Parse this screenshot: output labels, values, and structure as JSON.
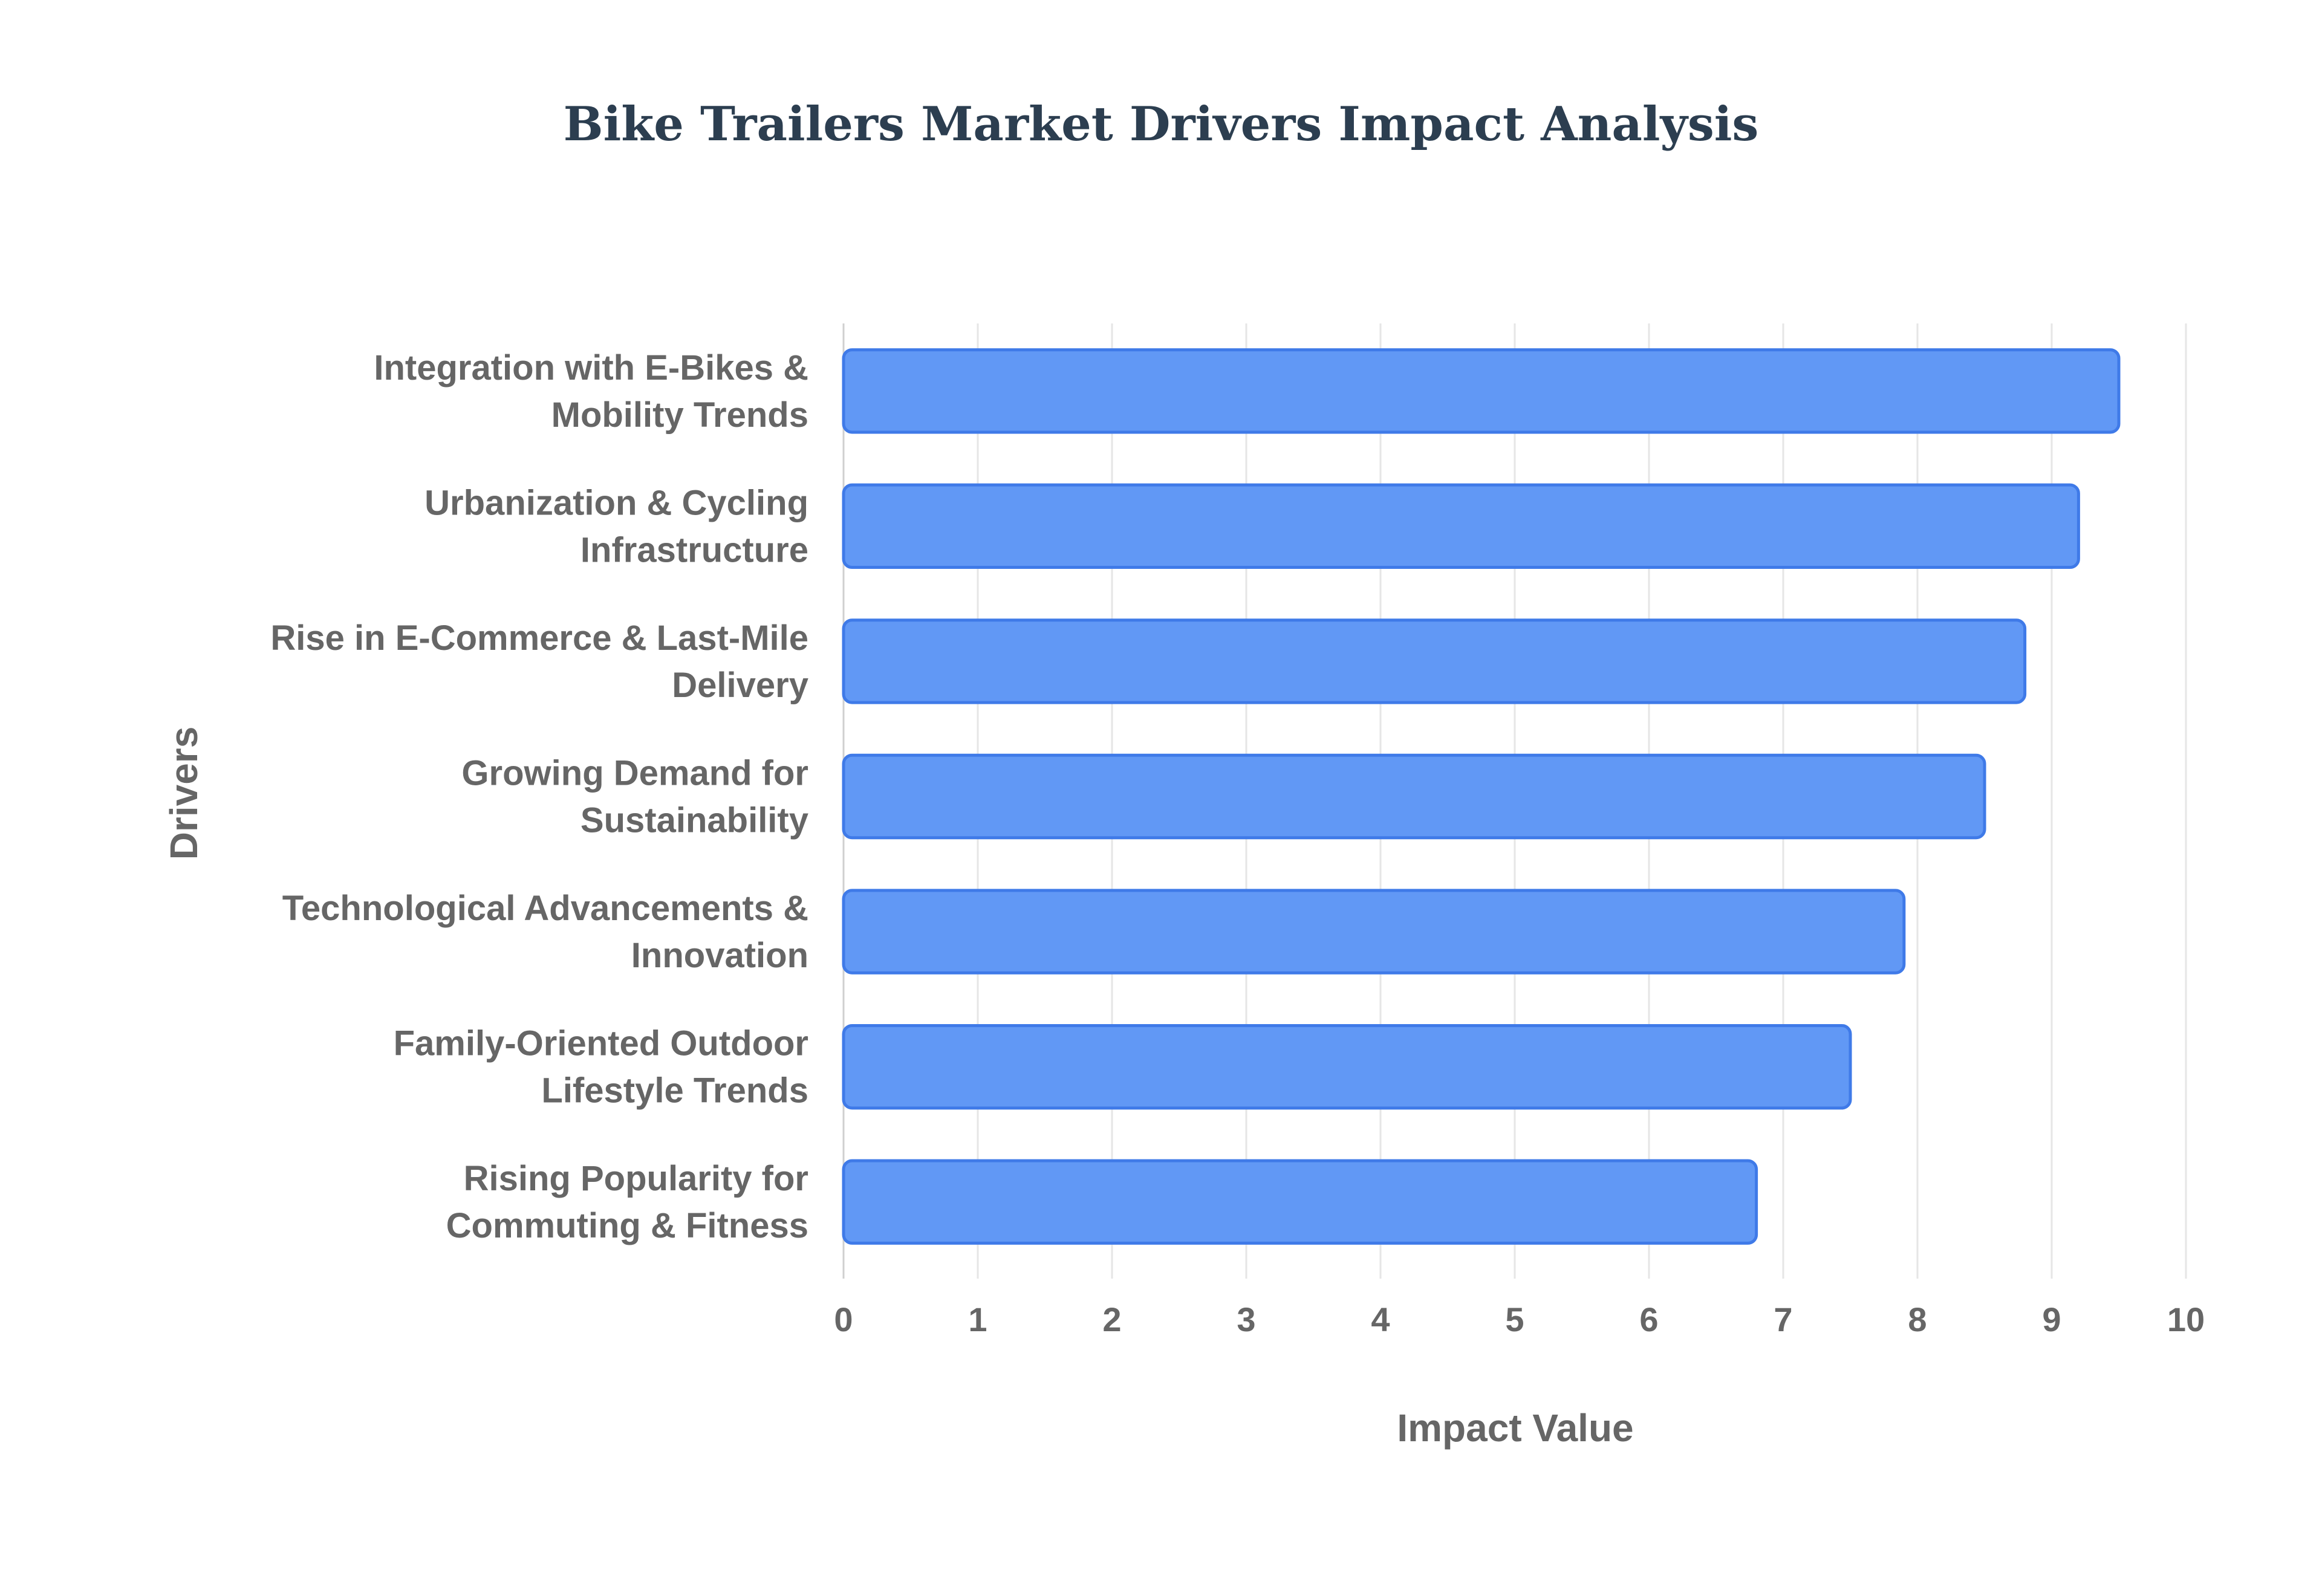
{
  "colors": {
    "bar_fill": "#6198f5",
    "bar_stroke": "#3f7ae8",
    "title": "#2c3e50",
    "text": "#666666",
    "grid": "#e6e6e6"
  },
  "chart_data": {
    "type": "bar",
    "orientation": "horizontal",
    "title": "Bike Trailers Market Drivers Impact Analysis",
    "xlabel": "Impact Value",
    "ylabel": "Drivers",
    "xlim": [
      0,
      10
    ],
    "x_ticks": [
      "0",
      "1",
      "2",
      "3",
      "4",
      "5",
      "6",
      "7",
      "8",
      "9",
      "10"
    ],
    "grid": true,
    "categories": [
      [
        "Integration with E-Bikes &",
        "Mobility Trends"
      ],
      [
        "Urbanization & Cycling",
        "Infrastructure"
      ],
      [
        "Rise in E-Commerce & Last-Mile",
        "Delivery"
      ],
      [
        "Growing Demand for",
        "Sustainability"
      ],
      [
        "Technological Advancements &",
        "Innovation"
      ],
      [
        "Family-Oriented Outdoor",
        "Lifestyle Trends"
      ],
      [
        "Rising Popularity for",
        "Commuting & Fitness"
      ]
    ],
    "values": [
      9.5,
      9.2,
      8.8,
      8.5,
      7.9,
      7.5,
      6.8
    ]
  }
}
